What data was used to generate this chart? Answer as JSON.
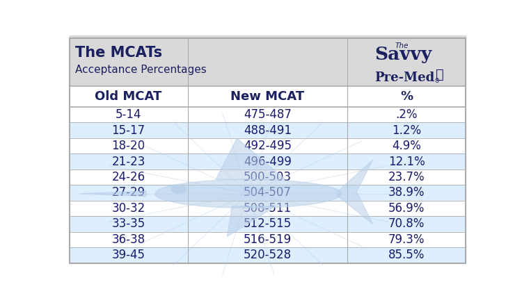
{
  "title": "The MCATs",
  "subtitle": "Acceptance Percentages",
  "col_headers": [
    "Old MCAT",
    "New MCAT",
    "%"
  ],
  "rows": [
    [
      "5-14",
      "475-487",
      ".2%"
    ],
    [
      "15-17",
      "488-491",
      "1.2%"
    ],
    [
      "18-20",
      "492-495",
      "4.9%"
    ],
    [
      "21-23",
      "496-499",
      "12.1%"
    ],
    [
      "24-26",
      "500-503",
      "23.7%"
    ],
    [
      "27-29",
      "504-507",
      "38.9%"
    ],
    [
      "30-32",
      "508-511",
      "56.9%"
    ],
    [
      "33-35",
      "512-515",
      "70.8%"
    ],
    [
      "36-38",
      "516-519",
      "79.3%"
    ],
    [
      "39-45",
      "520-528",
      "85.5%"
    ]
  ],
  "header_bg": "#d9d9d9",
  "col_header_bg": "#ffffff",
  "row_odd_bg": "#ffffff",
  "row_even_bg": "#ddeeff",
  "text_color": "#1a1a6e",
  "header_text_color": "#1a2060",
  "col_header_text_color": "#1a2060",
  "border_color": "#aaaaaa",
  "watermark_color": "#b8cfe8",
  "title_fontsize": 15,
  "subtitle_fontsize": 11,
  "col_header_fontsize": 13,
  "data_fontsize": 12,
  "col_ratios": [
    0.285,
    0.385,
    0.285
  ]
}
